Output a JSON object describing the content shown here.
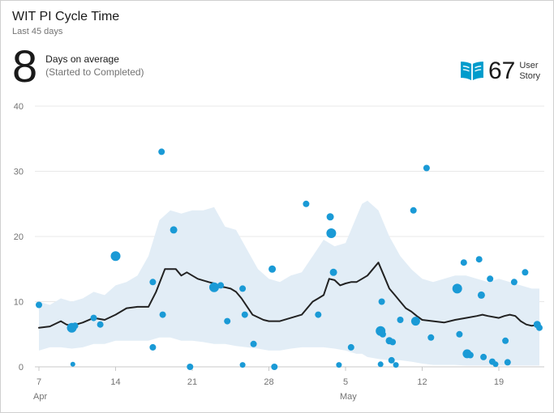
{
  "widget": {
    "title": "WIT PI Cycle Time",
    "subtitle": "Last 45 days",
    "average_value": "8",
    "average_label": "Days on average",
    "average_sublabel": "(Started to Completed)",
    "count_value": "67",
    "count_type_lines": [
      "User",
      "Story"
    ]
  },
  "chart_data": {
    "type": "scatter",
    "title": "WIT PI Cycle Time",
    "xlabel": "",
    "ylabel": "",
    "x_axis": {
      "unit": "days since Apr 7",
      "domain_days": 46,
      "ticks": [
        {
          "day": 0,
          "label": "7"
        },
        {
          "day": 7,
          "label": "14"
        },
        {
          "day": 14,
          "label": "21"
        },
        {
          "day": 21,
          "label": "28"
        },
        {
          "day": 28,
          "label": "5"
        },
        {
          "day": 35,
          "label": "12"
        },
        {
          "day": 42,
          "label": "19"
        }
      ],
      "months": [
        {
          "day": 0,
          "label": "Apr"
        },
        {
          "day": 28,
          "label": "May"
        }
      ]
    },
    "y_axis": {
      "min": 0,
      "max": 40,
      "ticks": [
        0,
        10,
        20,
        30,
        40
      ],
      "ylim": [
        0,
        40
      ],
      "grid": true
    },
    "colors": {
      "dot": "#1a9ad6",
      "trend": "#222222",
      "band": "#e2edf6",
      "grid": "#e8e8e8",
      "axis": "#c8c8c8",
      "icon": "#009ccc"
    },
    "scatter": [
      [
        0,
        9.5,
        4
      ],
      [
        3,
        6,
        6
      ],
      [
        3.3,
        6.3,
        4
      ],
      [
        3.1,
        0.4,
        3
      ],
      [
        5,
        7.5,
        4
      ],
      [
        5.6,
        6.5,
        4
      ],
      [
        7,
        17,
        6
      ],
      [
        10.4,
        13,
        4
      ],
      [
        10.4,
        3,
        4
      ],
      [
        11.2,
        33,
        4
      ],
      [
        11.3,
        8,
        4
      ],
      [
        12.3,
        21,
        4.5
      ],
      [
        13.8,
        0,
        4
      ],
      [
        16,
        12.2,
        6
      ],
      [
        16.6,
        12.5,
        4
      ],
      [
        17.2,
        7,
        4
      ],
      [
        18.6,
        12,
        4
      ],
      [
        18.8,
        8,
        4
      ],
      [
        18.6,
        0.3,
        3.5
      ],
      [
        19.6,
        3.5,
        4
      ],
      [
        21.3,
        15,
        4.5
      ],
      [
        21.5,
        0,
        4
      ],
      [
        24.4,
        25,
        4
      ],
      [
        25.5,
        8,
        4
      ],
      [
        26.6,
        23,
        4.5
      ],
      [
        26.7,
        20.5,
        6
      ],
      [
        26.9,
        14.5,
        4.5
      ],
      [
        27.4,
        0.3,
        3.5
      ],
      [
        28.5,
        3,
        4
      ],
      [
        31.2,
        5.5,
        6
      ],
      [
        31.3,
        10,
        4
      ],
      [
        31.4,
        5,
        4
      ],
      [
        31.2,
        0.4,
        3.5
      ],
      [
        32,
        4,
        4.5
      ],
      [
        32.3,
        3.8,
        4
      ],
      [
        32.2,
        1,
        4
      ],
      [
        32.6,
        0.3,
        3.5
      ],
      [
        33,
        7.2,
        4
      ],
      [
        34.2,
        24,
        4
      ],
      [
        34.4,
        7,
        5.5
      ],
      [
        35.4,
        30.5,
        4
      ],
      [
        35.8,
        4.5,
        4
      ],
      [
        38.2,
        12,
        6
      ],
      [
        38.4,
        5,
        4
      ],
      [
        38.8,
        16,
        4
      ],
      [
        39.1,
        2,
        5.5
      ],
      [
        39.4,
        1.8,
        4
      ],
      [
        40.2,
        16.5,
        4
      ],
      [
        40.4,
        11,
        4.5
      ],
      [
        40.6,
        1.5,
        4
      ],
      [
        41.2,
        13.5,
        4
      ],
      [
        41.4,
        0.8,
        4
      ],
      [
        41.7,
        0.4,
        3.5
      ],
      [
        42.6,
        4,
        4
      ],
      [
        42.8,
        0.7,
        4
      ],
      [
        43.4,
        13,
        4
      ],
      [
        44.4,
        14.5,
        4
      ],
      [
        45.5,
        6.5,
        4.5
      ],
      [
        45.7,
        6,
        4
      ]
    ],
    "trend": [
      [
        0,
        6
      ],
      [
        1,
        6.2
      ],
      [
        2,
        7
      ],
      [
        2.5,
        6.5
      ],
      [
        3,
        6.3
      ],
      [
        4,
        6.8
      ],
      [
        5,
        7.5
      ],
      [
        6,
        7.2
      ],
      [
        7,
        8
      ],
      [
        8,
        9
      ],
      [
        9,
        9.2
      ],
      [
        10,
        9.2
      ],
      [
        10.7,
        11.5
      ],
      [
        11.5,
        15
      ],
      [
        12.5,
        15
      ],
      [
        13,
        14
      ],
      [
        13.5,
        14.5
      ],
      [
        14.5,
        13.5
      ],
      [
        15.5,
        13
      ],
      [
        16,
        12.8
      ],
      [
        16.5,
        12.3
      ],
      [
        17,
        12.2
      ],
      [
        17.5,
        12
      ],
      [
        18,
        11.5
      ],
      [
        18.5,
        10.5
      ],
      [
        19.5,
        8
      ],
      [
        20.5,
        7.2
      ],
      [
        21,
        7
      ],
      [
        22,
        7
      ],
      [
        23,
        7.5
      ],
      [
        24,
        8
      ],
      [
        25,
        10
      ],
      [
        25.5,
        10.5
      ],
      [
        26,
        11
      ],
      [
        26.5,
        13.5
      ],
      [
        27,
        13.3
      ],
      [
        27.5,
        12.5
      ],
      [
        28,
        12.8
      ],
      [
        28.5,
        13
      ],
      [
        29,
        13
      ],
      [
        29.5,
        13.5
      ],
      [
        30,
        14
      ],
      [
        31,
        16
      ],
      [
        31.5,
        14
      ],
      [
        32,
        12
      ],
      [
        32.5,
        11
      ],
      [
        33,
        10
      ],
      [
        33.5,
        9
      ],
      [
        34,
        8.5
      ],
      [
        34.5,
        7.8
      ],
      [
        35,
        7.2
      ],
      [
        36,
        7
      ],
      [
        37,
        6.8
      ],
      [
        38,
        7.2
      ],
      [
        39,
        7.5
      ],
      [
        40,
        7.8
      ],
      [
        40.5,
        8
      ],
      [
        41,
        7.8
      ],
      [
        42,
        7.5
      ],
      [
        42.5,
        7.8
      ],
      [
        43,
        8
      ],
      [
        43.5,
        7.8
      ],
      [
        44,
        7
      ],
      [
        44.5,
        6.5
      ],
      [
        45,
        6.3
      ],
      [
        45.7,
        6.5
      ]
    ],
    "band": [
      [
        0,
        2.5,
        10
      ],
      [
        1,
        3,
        9.5
      ],
      [
        2,
        3,
        10.5
      ],
      [
        3,
        2.8,
        10
      ],
      [
        4,
        3,
        10.5
      ],
      [
        5,
        3.5,
        11.5
      ],
      [
        6,
        3.5,
        11
      ],
      [
        7,
        4,
        12.5
      ],
      [
        8,
        4,
        13
      ],
      [
        9,
        4,
        14
      ],
      [
        10,
        4,
        17
      ],
      [
        11,
        4.5,
        22.5
      ],
      [
        12,
        4.5,
        24
      ],
      [
        13,
        4,
        23.5
      ],
      [
        14,
        4,
        24
      ],
      [
        15,
        3.8,
        24
      ],
      [
        16,
        3.5,
        24.5
      ],
      [
        17,
        3.5,
        21.5
      ],
      [
        18,
        3.2,
        21
      ],
      [
        19,
        3,
        18
      ],
      [
        20,
        2.8,
        15
      ],
      [
        21,
        2.5,
        13.5
      ],
      [
        22,
        2.5,
        13
      ],
      [
        23,
        2.8,
        14
      ],
      [
        24,
        3,
        14.5
      ],
      [
        25,
        3,
        17
      ],
      [
        26,
        3,
        19.5
      ],
      [
        27,
        2.8,
        18.5
      ],
      [
        28,
        2.5,
        19
      ],
      [
        29,
        2,
        23
      ],
      [
        29.5,
        2,
        25
      ],
      [
        30,
        1.5,
        25.5
      ],
      [
        31,
        1.2,
        24
      ],
      [
        32,
        1,
        20
      ],
      [
        33,
        1,
        17
      ],
      [
        34,
        0.8,
        15
      ],
      [
        35,
        0.5,
        13.5
      ],
      [
        36,
        0.3,
        13
      ],
      [
        37,
        0.3,
        13.5
      ],
      [
        38,
        0.3,
        14
      ],
      [
        39,
        0.2,
        14
      ],
      [
        40,
        0.2,
        13.5
      ],
      [
        41,
        0.2,
        13
      ],
      [
        42,
        0.2,
        13.5
      ],
      [
        43,
        0.2,
        13
      ],
      [
        44,
        0.2,
        12.5
      ],
      [
        45,
        0.2,
        12
      ],
      [
        45.7,
        0.2,
        12
      ]
    ]
  }
}
